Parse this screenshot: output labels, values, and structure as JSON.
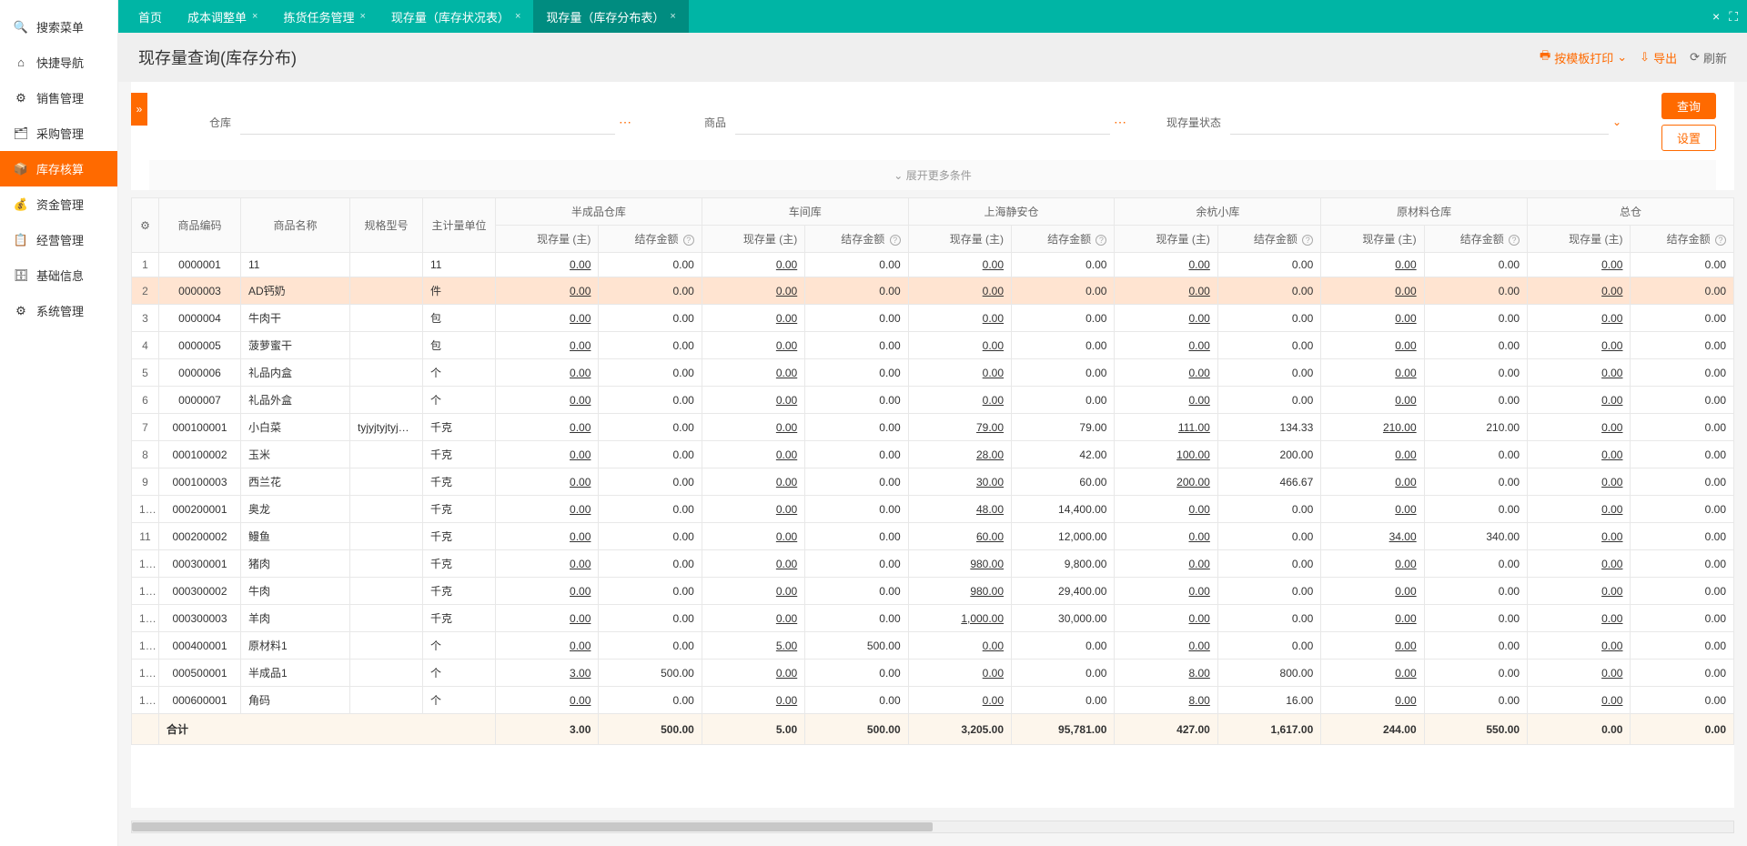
{
  "sidebar": {
    "items": [
      {
        "icon": "search",
        "label": "搜索菜单"
      },
      {
        "icon": "home",
        "label": "快捷导航"
      },
      {
        "icon": "sale",
        "label": "销售管理"
      },
      {
        "icon": "purchase",
        "label": "采购管理"
      },
      {
        "icon": "inventory",
        "label": "库存核算",
        "active": true
      },
      {
        "icon": "fund",
        "label": "资金管理"
      },
      {
        "icon": "biz",
        "label": "经营管理"
      },
      {
        "icon": "base",
        "label": "基础信息"
      },
      {
        "icon": "sys",
        "label": "系统管理"
      }
    ]
  },
  "tabs": [
    {
      "label": "首页",
      "closable": false
    },
    {
      "label": "成本调整单",
      "closable": true
    },
    {
      "label": "拣货任务管理",
      "closable": true
    },
    {
      "label": "现存量（库存状况表）",
      "closable": true
    },
    {
      "label": "现存量（库存分布表）",
      "closable": true,
      "active": true
    }
  ],
  "page": {
    "title": "现存量查询(库存分布)",
    "actions": {
      "print": "按模板打印",
      "export": "导出",
      "refresh": "刷新"
    }
  },
  "filters": {
    "warehouse_label": "仓库",
    "product_label": "商品",
    "status_label": "现存量状态",
    "query_btn": "查询",
    "settings_btn": "设置",
    "expand": "展开更多条件"
  },
  "table": {
    "group_headers": [
      "半成品仓库",
      "车间库",
      "上海静安仓",
      "余杭小库",
      "原材料仓库",
      "总仓"
    ],
    "sub_headers": {
      "qty": "现存量 (主)",
      "amt": "结存金额"
    },
    "fixed_headers": {
      "code": "商品编码",
      "name": "商品名称",
      "spec": "规格型号",
      "unit": "主计量单位"
    },
    "rows": [
      {
        "code": "0000001",
        "name": "11",
        "spec": "",
        "unit": "11",
        "v": [
          0,
          0,
          0,
          0,
          0,
          0,
          0,
          0,
          0,
          0,
          0,
          0
        ]
      },
      {
        "code": "0000003",
        "name": "AD钙奶",
        "spec": "",
        "unit": "件",
        "highlight": true,
        "v": [
          0,
          0,
          0,
          0,
          0,
          0,
          0,
          0,
          0,
          0,
          0,
          0
        ]
      },
      {
        "code": "0000004",
        "name": "牛肉干",
        "spec": "",
        "unit": "包",
        "v": [
          0,
          0,
          0,
          0,
          0,
          0,
          0,
          0,
          0,
          0,
          0,
          0
        ]
      },
      {
        "code": "0000005",
        "name": "菠萝蜜干",
        "spec": "",
        "unit": "包",
        "v": [
          0,
          0,
          0,
          0,
          0,
          0,
          0,
          0,
          0,
          0,
          0,
          0
        ]
      },
      {
        "code": "0000006",
        "name": "礼品内盒",
        "spec": "",
        "unit": "个",
        "v": [
          0,
          0,
          0,
          0,
          0,
          0,
          0,
          0,
          0,
          0,
          0,
          0
        ]
      },
      {
        "code": "0000007",
        "name": "礼品外盒",
        "spec": "",
        "unit": "个",
        "v": [
          0,
          0,
          0,
          0,
          0,
          0,
          0,
          0,
          0,
          0,
          0,
          0
        ]
      },
      {
        "code": "000100001",
        "name": "小白菜",
        "spec": "tyjyjtyjtyjdf...",
        "unit": "千克",
        "v": [
          0,
          0,
          0,
          0,
          79,
          79,
          111,
          134.33,
          210,
          210,
          0,
          0
        ]
      },
      {
        "code": "000100002",
        "name": "玉米",
        "spec": "",
        "unit": "千克",
        "v": [
          0,
          0,
          0,
          0,
          28,
          42,
          100,
          200,
          0,
          0,
          0,
          0
        ]
      },
      {
        "code": "000100003",
        "name": "西兰花",
        "spec": "",
        "unit": "千克",
        "v": [
          0,
          0,
          0,
          0,
          30,
          60,
          200,
          466.67,
          0,
          0,
          0,
          0
        ]
      },
      {
        "code": "000200001",
        "name": "奥龙",
        "spec": "",
        "unit": "千克",
        "v": [
          0,
          0,
          0,
          0,
          48,
          14400,
          0,
          0,
          0,
          0,
          0,
          0
        ]
      },
      {
        "code": "000200002",
        "name": "鳗鱼",
        "spec": "",
        "unit": "千克",
        "v": [
          0,
          0,
          0,
          0,
          60,
          12000,
          0,
          0,
          34,
          340,
          0,
          0
        ]
      },
      {
        "code": "000300001",
        "name": "猪肉",
        "spec": "",
        "unit": "千克",
        "v": [
          0,
          0,
          0,
          0,
          980,
          9800,
          0,
          0,
          0,
          0,
          0,
          0
        ]
      },
      {
        "code": "000300002",
        "name": "牛肉",
        "spec": "",
        "unit": "千克",
        "v": [
          0,
          0,
          0,
          0,
          980,
          29400,
          0,
          0,
          0,
          0,
          0,
          0
        ]
      },
      {
        "code": "000300003",
        "name": "羊肉",
        "spec": "",
        "unit": "千克",
        "v": [
          0,
          0,
          0,
          0,
          1000,
          30000,
          0,
          0,
          0,
          0,
          0,
          0
        ]
      },
      {
        "code": "000400001",
        "name": "原材料1",
        "spec": "",
        "unit": "个",
        "v": [
          0,
          0,
          5,
          500,
          0,
          0,
          0,
          0,
          0,
          0,
          0,
          0
        ]
      },
      {
        "code": "000500001",
        "name": "半成品1",
        "spec": "",
        "unit": "个",
        "v": [
          3,
          500,
          0,
          0,
          0,
          0,
          8,
          800,
          0,
          0,
          0,
          0
        ]
      },
      {
        "code": "000600001",
        "name": "角码",
        "spec": "",
        "unit": "个",
        "v": [
          0,
          0,
          0,
          0,
          0,
          0,
          8,
          16,
          0,
          0,
          0,
          0
        ]
      }
    ],
    "footer": {
      "label": "合计",
      "v": [
        3,
        500,
        5,
        500,
        3205,
        95781,
        427,
        1617,
        244,
        550,
        0,
        0
      ]
    }
  },
  "colors": {
    "accent": "#ff6a00",
    "teal": "#00b5a5",
    "teal_dark": "#008c80",
    "highlight": "#ffe4d1",
    "footer_bg": "#fdf6ec"
  }
}
